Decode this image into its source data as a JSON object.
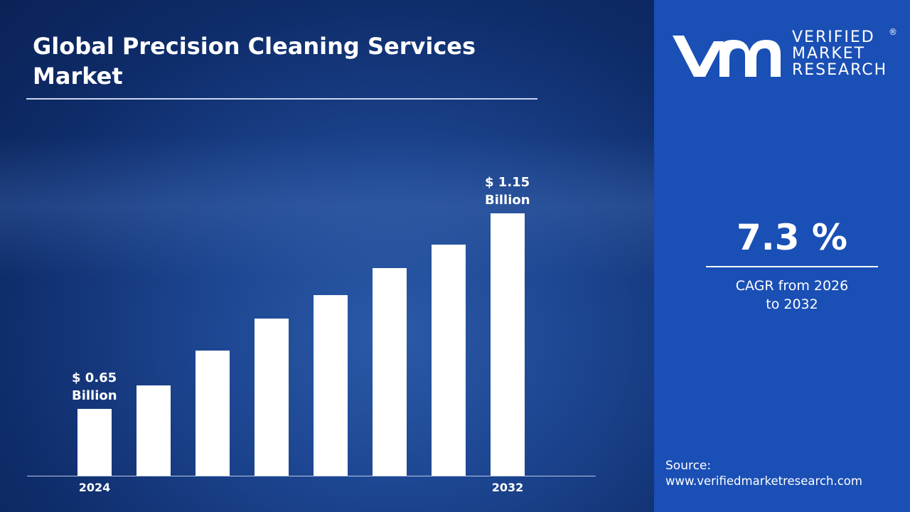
{
  "chart_data": {
    "type": "bar",
    "title": "Global Precision Cleaning Services Market",
    "categories": [
      "2024",
      null,
      null,
      null,
      null,
      null,
      null,
      "2032"
    ],
    "values": [
      0.65,
      0.71,
      0.8,
      0.88,
      0.94,
      1.01,
      1.07,
      1.15
    ],
    "value_labels": [
      "$ 0.65 Billion",
      null,
      null,
      null,
      null,
      null,
      null,
      "$ 1.15 Billion"
    ],
    "color": "#ffffff",
    "ylim": [
      0.48,
      1.2
    ]
  },
  "cagr": {
    "value": "7.3 %",
    "label": "CAGR from 2026 to 2032"
  },
  "source": {
    "label": "Source:",
    "url": "www.verifiedmarketresearch.com"
  },
  "logo": {
    "lines": [
      "VERIFIED",
      "MARKET",
      "RESEARCH"
    ],
    "mark": "®"
  }
}
